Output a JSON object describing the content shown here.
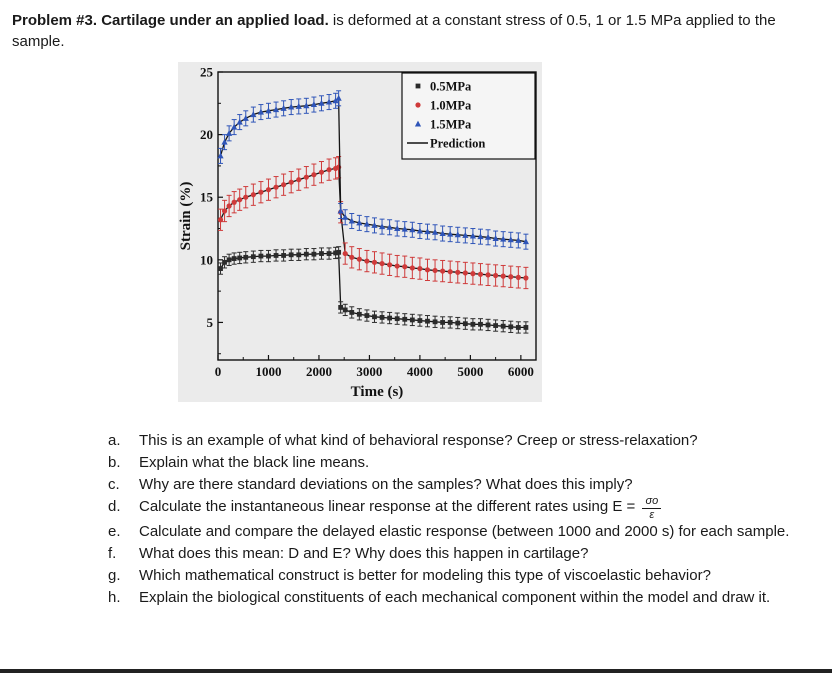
{
  "intro": {
    "bold": "Problem #3. Cartilage under an applied load.",
    "rest": " is deformed at a constant stress of 0.5, 1 or 1.5 MPa applied to the sample."
  },
  "questions": [
    {
      "letter": "a.",
      "text": "This is an example of what kind of behavioral response? Creep or stress-relaxation?"
    },
    {
      "letter": "b.",
      "text": "Explain what the black line means."
    },
    {
      "letter": "c.",
      "text": "Why are there standard deviations on the samples? What does this imply?"
    },
    {
      "letter": "d.",
      "text": "Calculate the instantaneous linear response at the different rates using E = ",
      "frac_num": "σo",
      "frac_den": "ε"
    },
    {
      "letter": "e.",
      "text": "Calculate and compare the delayed elastic response (between 1000 and 2000 s) for each sample."
    },
    {
      "letter": "f.",
      "text": "What does this mean: D and E? Why does this happen in cartilage?"
    },
    {
      "letter": "g.",
      "text": "Which mathematical construct is better for modeling this type of viscoelastic behavior?"
    },
    {
      "letter": "h.",
      "text": "Explain the biological constituents of each mechanical component within the model and draw it."
    }
  ],
  "chart_data": {
    "type": "scatter",
    "title": "",
    "xlabel": "Time (s)",
    "ylabel": "Strain (%)",
    "xlim": [
      0,
      6300
    ],
    "ylim": [
      2,
      25
    ],
    "xticks": [
      0,
      1000,
      2000,
      3000,
      4000,
      5000,
      6000
    ],
    "yticks": [
      5,
      10,
      15,
      20,
      25
    ],
    "grid": false,
    "legend_position": "top-right",
    "prediction_label": "Prediction",
    "prediction_color": "#141414",
    "series": [
      {
        "name": "0.5MPa",
        "marker": "square",
        "color": "#2b2b2b",
        "err": 0.45,
        "points": [
          [
            50,
            9.3
          ],
          [
            130,
            9.8
          ],
          [
            220,
            10.0
          ],
          [
            320,
            10.1
          ],
          [
            430,
            10.15
          ],
          [
            550,
            10.2
          ],
          [
            700,
            10.25
          ],
          [
            850,
            10.3
          ],
          [
            1000,
            10.3
          ],
          [
            1150,
            10.35
          ],
          [
            1300,
            10.35
          ],
          [
            1450,
            10.4
          ],
          [
            1600,
            10.4
          ],
          [
            1750,
            10.45
          ],
          [
            1900,
            10.45
          ],
          [
            2050,
            10.5
          ],
          [
            2200,
            10.5
          ],
          [
            2330,
            10.55
          ],
          [
            2390,
            10.6
          ],
          [
            2430,
            6.2
          ],
          [
            2520,
            6.0
          ],
          [
            2650,
            5.8
          ],
          [
            2800,
            5.65
          ],
          [
            2950,
            5.55
          ],
          [
            3100,
            5.45
          ],
          [
            3250,
            5.4
          ],
          [
            3400,
            5.35
          ],
          [
            3550,
            5.3
          ],
          [
            3700,
            5.25
          ],
          [
            3850,
            5.2
          ],
          [
            4000,
            5.15
          ],
          [
            4150,
            5.1
          ],
          [
            4300,
            5.05
          ],
          [
            4450,
            5.0
          ],
          [
            4600,
            5.0
          ],
          [
            4750,
            4.95
          ],
          [
            4900,
            4.9
          ],
          [
            5050,
            4.85
          ],
          [
            5200,
            4.85
          ],
          [
            5350,
            4.8
          ],
          [
            5500,
            4.75
          ],
          [
            5650,
            4.7
          ],
          [
            5800,
            4.65
          ],
          [
            5950,
            4.6
          ],
          [
            6100,
            4.6
          ]
        ]
      },
      {
        "name": "1.0MPa",
        "marker": "circle",
        "color": "#cf3a3a",
        "err": 0.85,
        "points": [
          [
            50,
            13.2
          ],
          [
            130,
            13.9
          ],
          [
            220,
            14.3
          ],
          [
            320,
            14.6
          ],
          [
            430,
            14.8
          ],
          [
            550,
            15.0
          ],
          [
            700,
            15.2
          ],
          [
            850,
            15.4
          ],
          [
            1000,
            15.6
          ],
          [
            1150,
            15.8
          ],
          [
            1300,
            16.0
          ],
          [
            1450,
            16.2
          ],
          [
            1600,
            16.4
          ],
          [
            1750,
            16.6
          ],
          [
            1900,
            16.8
          ],
          [
            2050,
            17.0
          ],
          [
            2200,
            17.2
          ],
          [
            2330,
            17.3
          ],
          [
            2390,
            17.4
          ],
          [
            2430,
            13.8
          ],
          [
            2520,
            10.5
          ],
          [
            2650,
            10.2
          ],
          [
            2800,
            10.05
          ],
          [
            2950,
            9.9
          ],
          [
            3100,
            9.8
          ],
          [
            3250,
            9.7
          ],
          [
            3400,
            9.6
          ],
          [
            3550,
            9.5
          ],
          [
            3700,
            9.45
          ],
          [
            3850,
            9.35
          ],
          [
            4000,
            9.3
          ],
          [
            4150,
            9.2
          ],
          [
            4300,
            9.15
          ],
          [
            4450,
            9.1
          ],
          [
            4600,
            9.05
          ],
          [
            4750,
            9.0
          ],
          [
            4900,
            8.95
          ],
          [
            5050,
            8.9
          ],
          [
            5200,
            8.85
          ],
          [
            5350,
            8.8
          ],
          [
            5500,
            8.75
          ],
          [
            5650,
            8.7
          ],
          [
            5800,
            8.65
          ],
          [
            5950,
            8.6
          ],
          [
            6100,
            8.55
          ]
        ]
      },
      {
        "name": "1.5MPa",
        "marker": "triangle",
        "color": "#2f55b8",
        "err": 0.6,
        "points": [
          [
            50,
            18.3
          ],
          [
            130,
            19.4
          ],
          [
            220,
            20.1
          ],
          [
            320,
            20.6
          ],
          [
            430,
            21.0
          ],
          [
            550,
            21.3
          ],
          [
            700,
            21.6
          ],
          [
            850,
            21.8
          ],
          [
            1000,
            21.9
          ],
          [
            1150,
            22.0
          ],
          [
            1300,
            22.1
          ],
          [
            1450,
            22.2
          ],
          [
            1600,
            22.25
          ],
          [
            1750,
            22.3
          ],
          [
            1900,
            22.4
          ],
          [
            2050,
            22.5
          ],
          [
            2200,
            22.6
          ],
          [
            2330,
            22.7
          ],
          [
            2390,
            22.9
          ],
          [
            2430,
            13.9
          ],
          [
            2520,
            13.4
          ],
          [
            2650,
            13.1
          ],
          [
            2800,
            12.95
          ],
          [
            2950,
            12.85
          ],
          [
            3100,
            12.75
          ],
          [
            3250,
            12.65
          ],
          [
            3400,
            12.6
          ],
          [
            3550,
            12.5
          ],
          [
            3700,
            12.45
          ],
          [
            3850,
            12.4
          ],
          [
            4000,
            12.3
          ],
          [
            4150,
            12.25
          ],
          [
            4300,
            12.2
          ],
          [
            4450,
            12.1
          ],
          [
            4600,
            12.05
          ],
          [
            4750,
            12.0
          ],
          [
            4900,
            11.95
          ],
          [
            5050,
            11.9
          ],
          [
            5200,
            11.85
          ],
          [
            5350,
            11.8
          ],
          [
            5500,
            11.7
          ],
          [
            5650,
            11.65
          ],
          [
            5800,
            11.6
          ],
          [
            5950,
            11.55
          ],
          [
            6100,
            11.45
          ]
        ]
      }
    ]
  }
}
